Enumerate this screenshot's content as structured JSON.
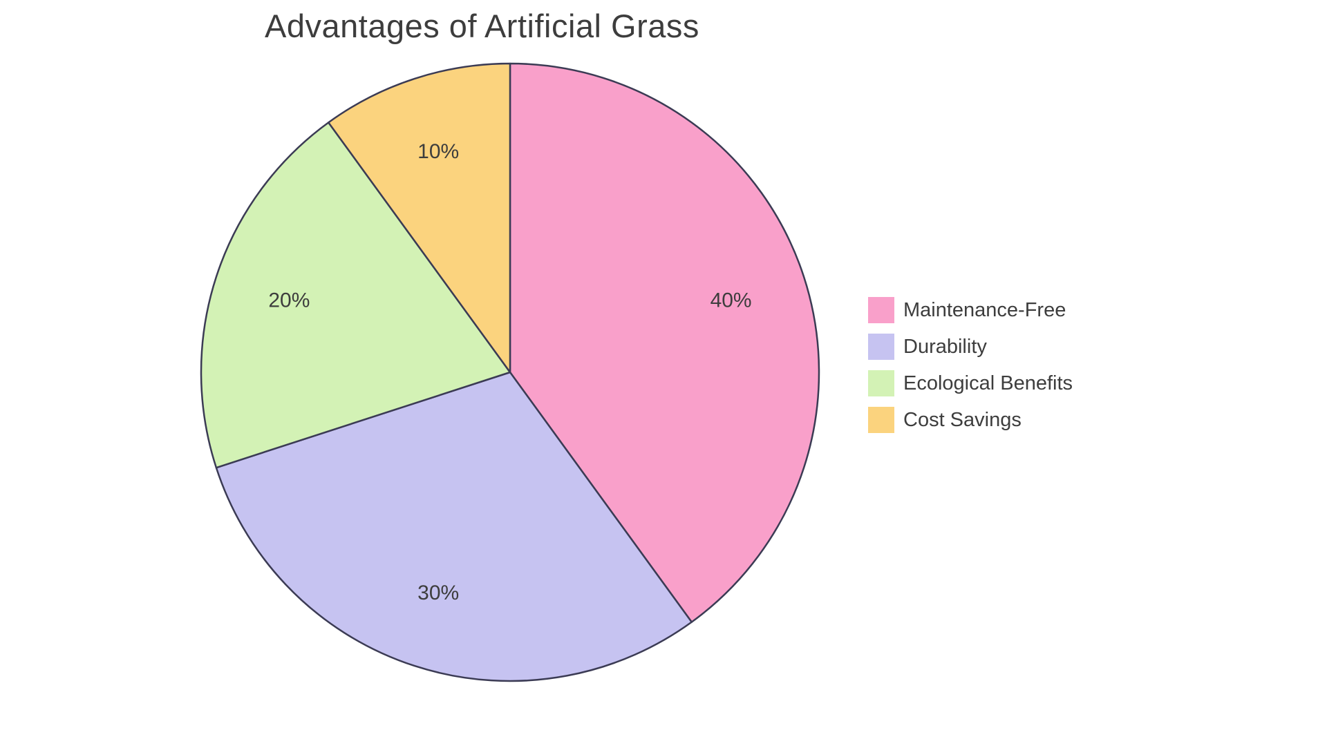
{
  "title": "Advantages of Artificial Grass",
  "chart_data": {
    "type": "pie",
    "title": "Advantages of Artificial Grass",
    "categories": [
      "Maintenance-Free",
      "Durability",
      "Ecological Benefits",
      "Cost Savings"
    ],
    "values": [
      40,
      30,
      20,
      10
    ],
    "labels": [
      "40%",
      "30%",
      "20%",
      "10%"
    ],
    "colors": [
      "#F9A0CA",
      "#C6C3F1",
      "#D3F2B5",
      "#FBD37E"
    ],
    "slice_border_color": "#3b3b54",
    "label_color": "#3d3d3d",
    "title_color": "#3d3d3d",
    "background_color": "#ffffff",
    "legend_position": "right",
    "start_angle_deg": 0,
    "direction": "clockwise"
  }
}
